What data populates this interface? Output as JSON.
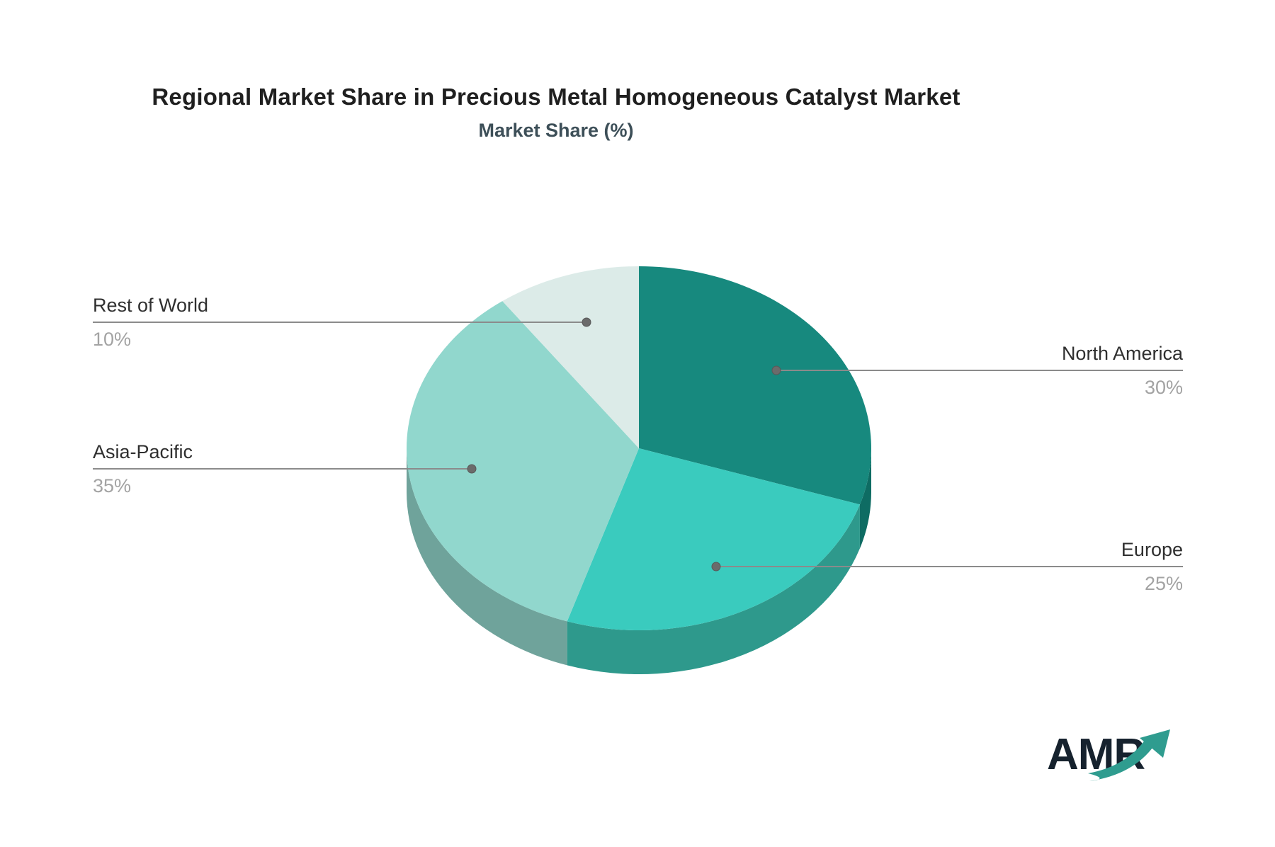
{
  "header": {
    "title": "Regional Market Share in Precious Metal Homogeneous Catalyst Market",
    "subtitle": "Market Share (%)"
  },
  "chart_data": {
    "type": "pie",
    "style": "3d",
    "title": "Regional Market Share in Precious Metal Homogeneous Catalyst Market",
    "subtitle": "Market Share (%)",
    "unit": "%",
    "start_angle_deg": 0,
    "direction": "clockwise",
    "legend": "none",
    "slices": [
      {
        "label": "North America",
        "value": 30,
        "display_value": "30%",
        "color": "#17897E",
        "side_color": "#0E6C63"
      },
      {
        "label": "Europe",
        "value": 25,
        "display_value": "25%",
        "color": "#3ACBBE",
        "side_color": "#2E998C"
      },
      {
        "label": "Asia-Pacific",
        "value": 35,
        "display_value": "35%",
        "color": "#91D7CD",
        "side_color": "#6FA39B"
      },
      {
        "label": "Rest of World",
        "value": 10,
        "display_value": "10%",
        "color": "#DCEBE8",
        "side_color": "#B9CFCB"
      }
    ],
    "colors": {
      "label_text": "#2F2F2F",
      "value_text": "#A3A3A3",
      "connector_line": "#8B8B8B",
      "connector_dot": "#6B6B6B"
    }
  },
  "logo": {
    "text": "AMR",
    "text_color": "#16222E",
    "arrow_color": "#2F9C8F"
  }
}
